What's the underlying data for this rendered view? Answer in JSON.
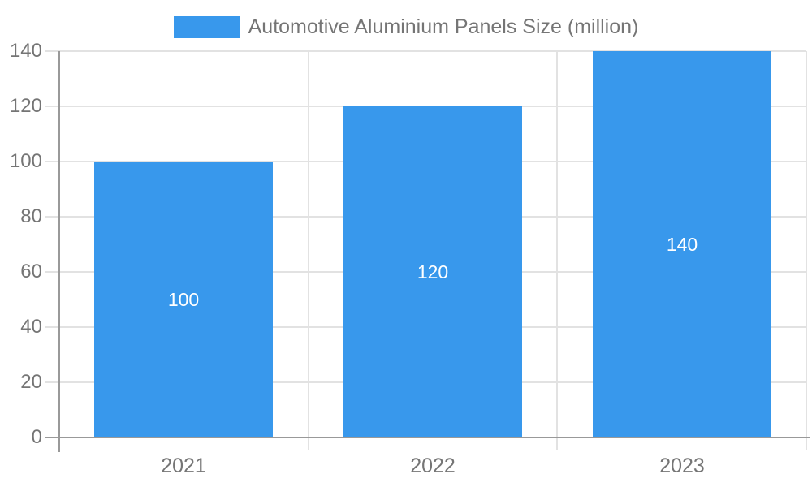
{
  "chart_data": {
    "type": "bar",
    "title": "",
    "legend_label": "Automotive Aluminium Panels Size (million)",
    "categories": [
      "2021",
      "2022",
      "2023"
    ],
    "series": [
      {
        "name": "Automotive Aluminium Panels Size (million)",
        "values": [
          100,
          120,
          140
        ]
      }
    ],
    "data_labels_shown": true,
    "ylim": [
      0,
      140
    ],
    "yticks": [
      0,
      20,
      40,
      60,
      80,
      100,
      120,
      140
    ],
    "xlabel": "",
    "ylabel": "",
    "grid": true,
    "legend_position": "top-center",
    "colors": {
      "bar": "#3898ec",
      "grid": "#e2e2e2",
      "axis_line": "#999999",
      "axis_text": "#757575",
      "data_label": "#ffffff",
      "background": "#ffffff"
    }
  }
}
